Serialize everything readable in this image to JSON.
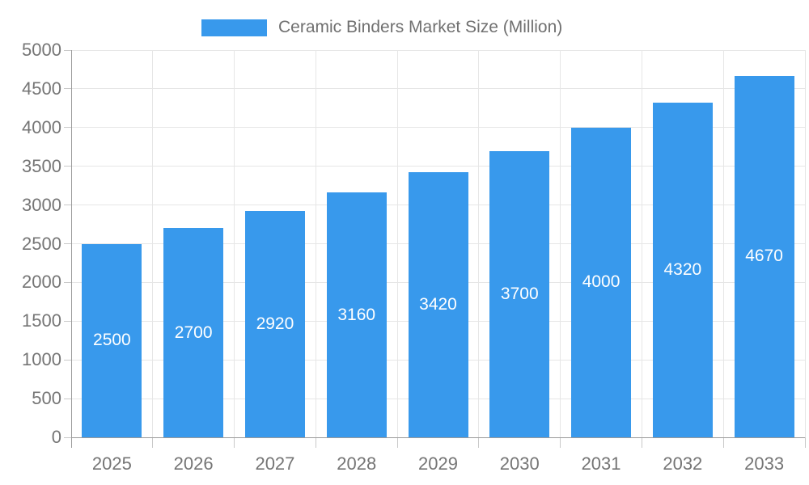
{
  "legend": {
    "label": "Ceramic Binders Market Size (Million)",
    "swatch_color": "#3899EC"
  },
  "chart_data": {
    "type": "bar",
    "title": "Ceramic Binders Market Size (Million)",
    "categories": [
      "2025",
      "2026",
      "2027",
      "2028",
      "2029",
      "2030",
      "2031",
      "2032",
      "2033"
    ],
    "values": [
      2500,
      2700,
      2920,
      3160,
      3420,
      3700,
      4000,
      4320,
      4670
    ],
    "series_name": "Ceramic Binders Market Size (Million)",
    "xlabel": "",
    "ylabel": "",
    "ylim": [
      0,
      5000
    ],
    "yticks": [
      0,
      500,
      1000,
      1500,
      2000,
      2500,
      3000,
      3500,
      4000,
      4500,
      5000
    ],
    "grid": true,
    "legend_position": "top",
    "value_labels": "inside-center"
  },
  "colors": {
    "bar": "#3899EC",
    "gridline": "#E6E6E6",
    "axis_line": "#9B9B9B",
    "tick": "#C9C9C9",
    "axis_label_text": "#757575",
    "legend_text": "#707070",
    "value_label_text": "#FFFFFF",
    "background": "#FFFFFF"
  }
}
